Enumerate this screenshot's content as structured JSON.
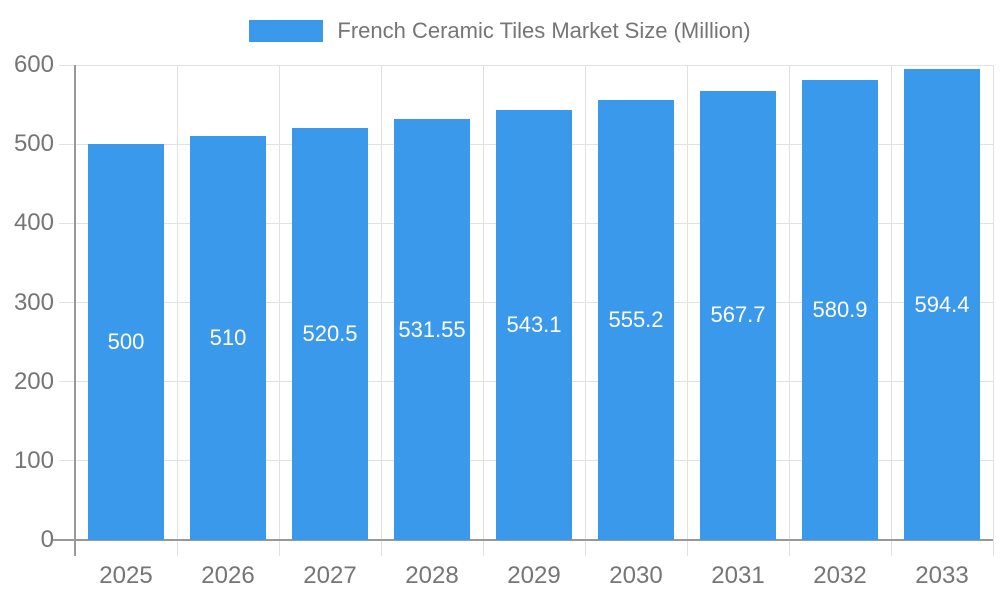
{
  "chart_data": {
    "type": "bar",
    "title": "French Ceramic Tiles Market Size (Million)",
    "categories": [
      "2025",
      "2026",
      "2027",
      "2028",
      "2029",
      "2030",
      "2031",
      "2032",
      "2033"
    ],
    "values": [
      500,
      510,
      520.5,
      531.55,
      543.1,
      555.2,
      567.7,
      580.9,
      594.4
    ],
    "bar_labels": [
      "500",
      "510",
      "520.5",
      "531.55",
      "543.1",
      "555.2",
      "567.7",
      "580.9",
      "594.4"
    ],
    "xlabel": "",
    "ylabel": "",
    "ylim": [
      0,
      600
    ],
    "ytick_interval": 100,
    "yticks": [
      "0",
      "100",
      "200",
      "300",
      "400",
      "500",
      "600"
    ],
    "grid": true,
    "legend_position": "top",
    "colors": {
      "bar": "#3B99EC",
      "grid": "#E2E2E2",
      "axis": "#999999",
      "tick_label": "#757575",
      "bar_label": "#FFFFFF",
      "legend_text": "#757575",
      "background": "#FFFFFF"
    }
  }
}
